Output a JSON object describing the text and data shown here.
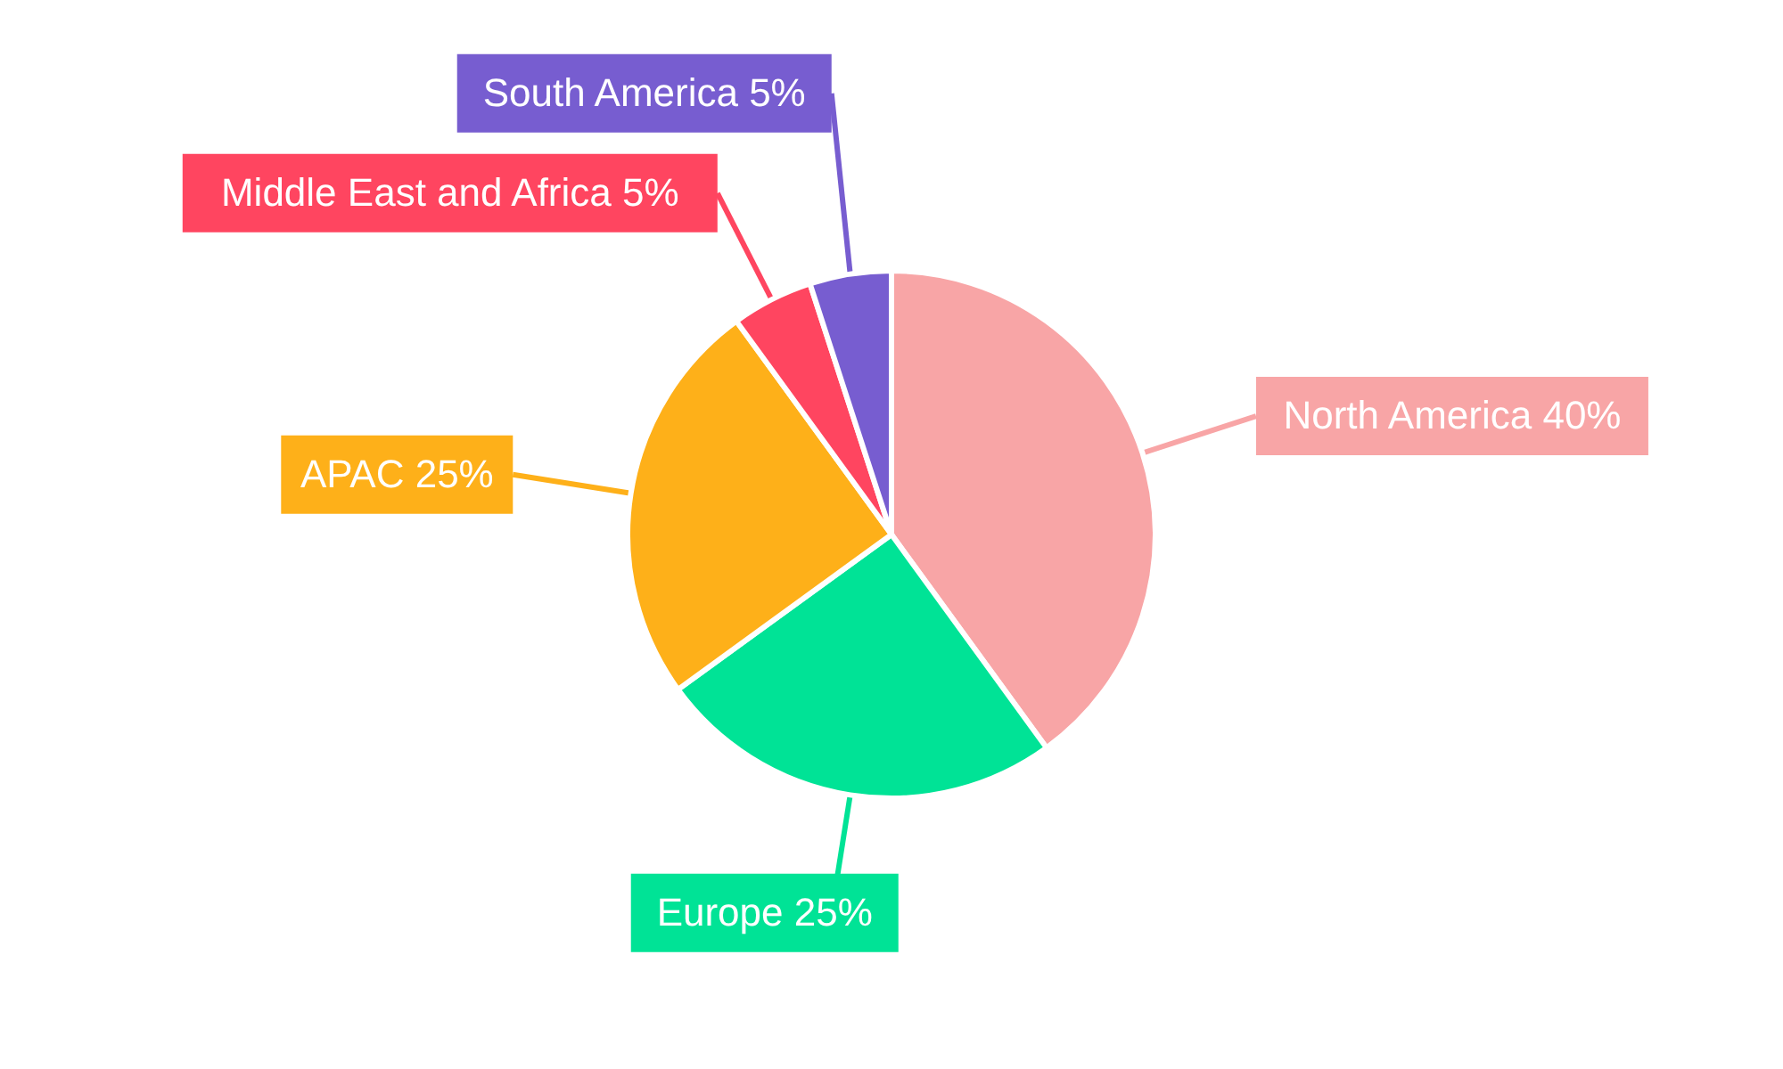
{
  "chart_data": {
    "type": "pie",
    "categories": [
      "North America",
      "Europe",
      "APAC",
      "Middle East and Africa",
      "South America"
    ],
    "values": [
      40,
      25,
      25,
      5,
      5
    ],
    "value_labels": [
      "40%",
      "25%",
      "25%",
      "5%",
      "5%"
    ],
    "colors": [
      "#f8a5a6",
      "#00e396",
      "#feb019",
      "#ff4560",
      "#775dd0"
    ]
  }
}
